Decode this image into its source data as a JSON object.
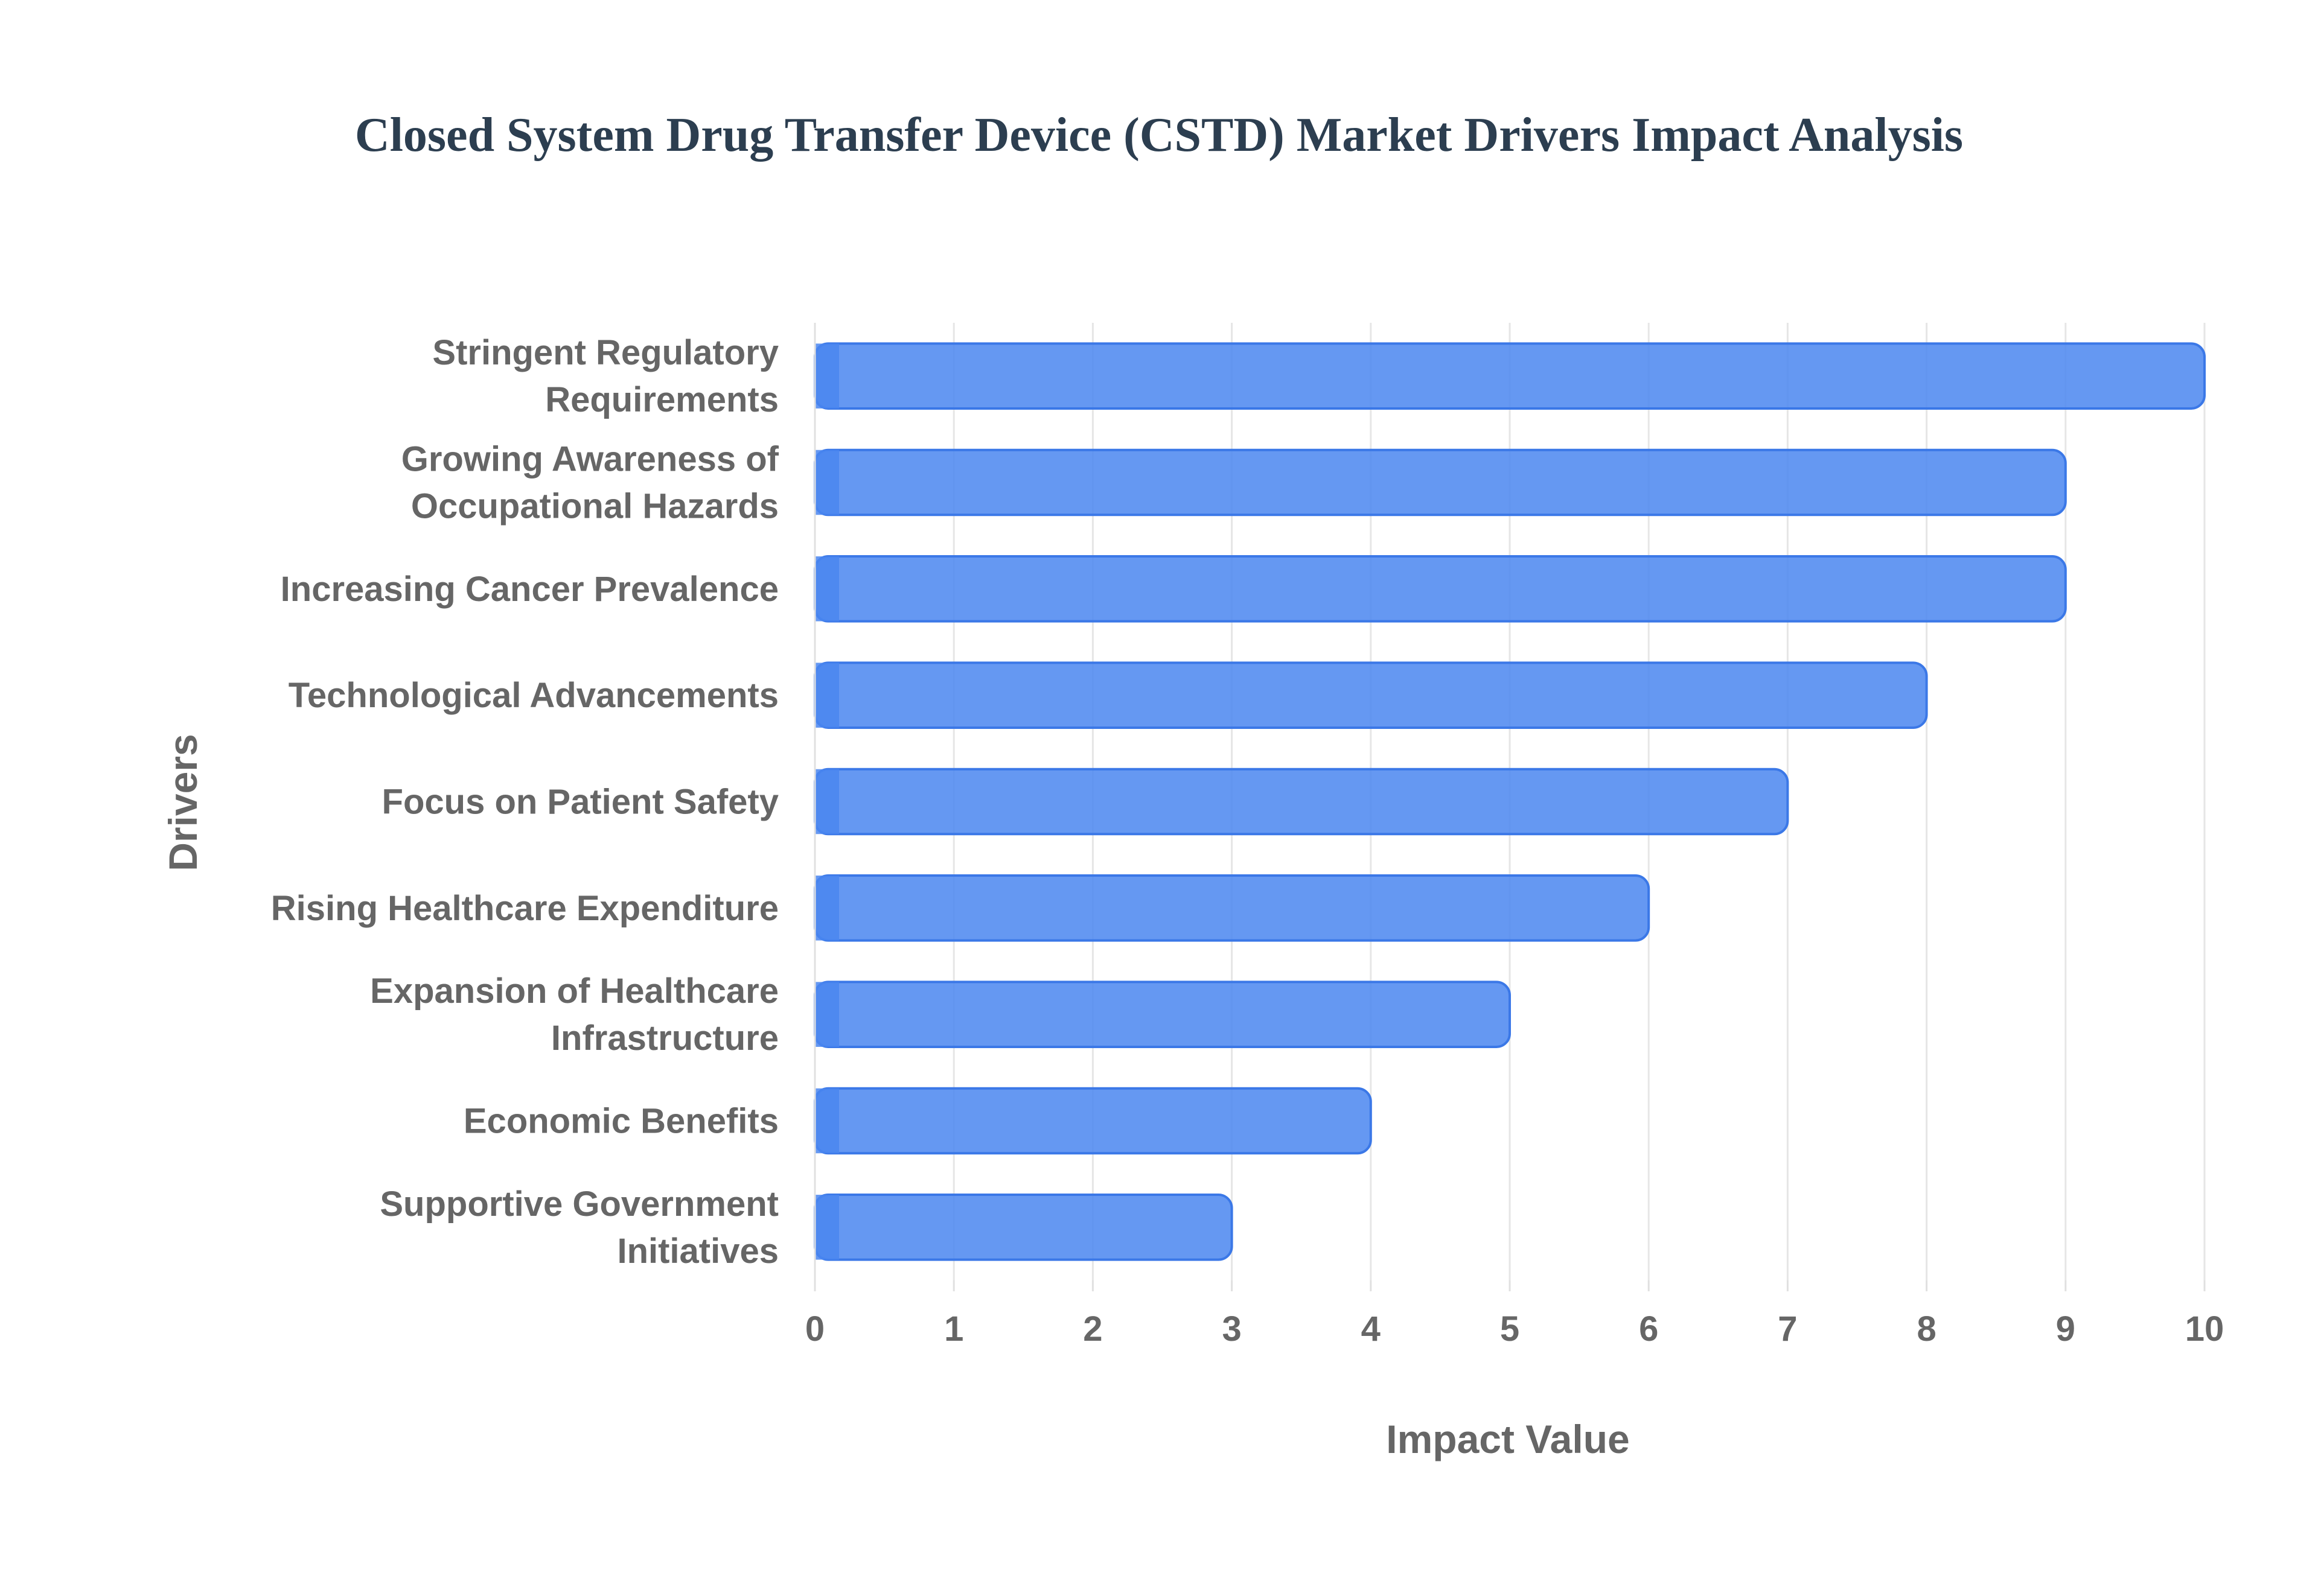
{
  "chart_data": {
    "type": "bar",
    "orientation": "horizontal",
    "title": "Closed System Drug Transfer Device (CSTD) Market Drivers Impact Analysis",
    "xlabel": "Impact Value",
    "ylabel": "Drivers",
    "xlim": [
      0,
      10
    ],
    "xticks": [
      "0",
      "1",
      "2",
      "3",
      "4",
      "5",
      "6",
      "7",
      "8",
      "9",
      "10"
    ],
    "grid": true,
    "categories": [
      [
        "Stringent Regulatory",
        "Requirements"
      ],
      [
        "Growing Awareness of",
        "Occupational Hazards"
      ],
      [
        "Increasing Cancer Prevalence"
      ],
      [
        "Technological Advancements"
      ],
      [
        "Focus on Patient Safety"
      ],
      [
        "Rising Healthcare Expenditure"
      ],
      [
        "Expansion of Healthcare",
        "Infrastructure"
      ],
      [
        "Economic Benefits"
      ],
      [
        "Supportive Government",
        "Initiatives"
      ]
    ],
    "values": [
      10,
      9,
      9,
      8,
      7,
      6,
      5,
      4,
      3
    ],
    "bar_color": "#4a86f0",
    "bar_stroke": "#3b78e7"
  }
}
